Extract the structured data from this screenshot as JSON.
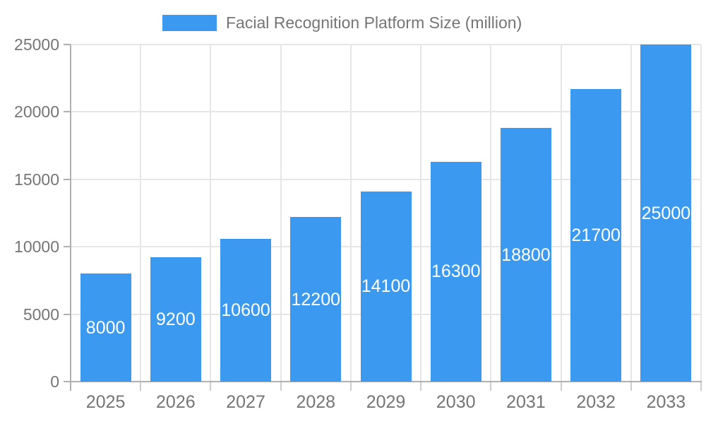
{
  "chart_data": {
    "type": "bar",
    "title": "Facial Recognition Platform Size (million)",
    "categories": [
      "2025",
      "2026",
      "2027",
      "2028",
      "2029",
      "2030",
      "2031",
      "2032",
      "2033"
    ],
    "series": [
      {
        "name": "Facial Recognition Platform Size (million)",
        "values": [
          8000,
          9200,
          10600,
          12200,
          14100,
          16300,
          18800,
          21700,
          25000
        ]
      }
    ],
    "value_labels": [
      8000,
      9200,
      10600,
      12200,
      14100,
      16300,
      18800,
      21700,
      25000
    ],
    "xlabel": "",
    "ylabel": "",
    "ylim": [
      0,
      25000
    ],
    "yticks": [
      0,
      5000,
      10000,
      15000,
      20000,
      25000
    ],
    "grid": true,
    "legend_position": "top",
    "colors": {
      "bar": "#3B9AEF",
      "bar_label": "#ffffff",
      "axis_text": "#757575",
      "grid_line": "#e6e6e6",
      "axis_line": "#b0b0b0",
      "tick_line": "#cccccc",
      "background": "#ffffff"
    }
  }
}
